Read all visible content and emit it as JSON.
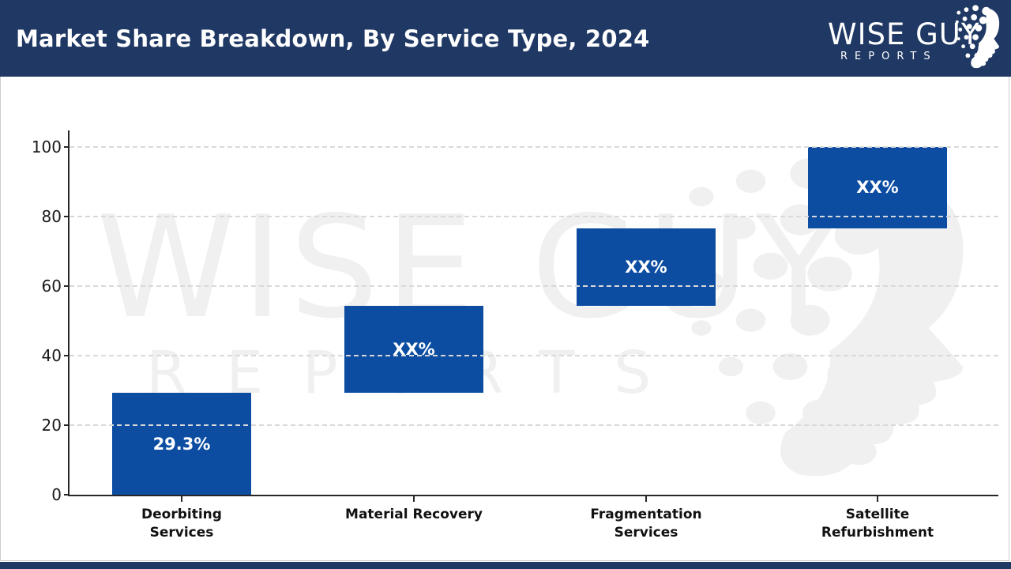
{
  "header": {
    "title": "Market Share Breakdown, By Service Type, 2024"
  },
  "logo": {
    "line1": "WISE GUY",
    "line2": "REPORTS"
  },
  "watermark": {
    "line1": "WISE GUY",
    "line2": "REPORTS"
  },
  "colors": {
    "header_bg": "#1f3864",
    "footer_bg": "#1f3864",
    "bar": "#0c4da2",
    "bar_label": "#ffffff",
    "grid": "#d9d9d9",
    "axis": "#262626",
    "tick_text": "#1a1a1a",
    "watermark": "#f0f0f0"
  },
  "chart_data": {
    "type": "bar",
    "subtype": "waterfall-floating-segments",
    "title": "Market Share Breakdown, By Service Type, 2024",
    "xlabel": "",
    "ylabel": "",
    "ylim": [
      0,
      100
    ],
    "yticks": [
      0,
      20,
      40,
      60,
      80,
      100
    ],
    "grid": "horizontal-dashed",
    "legend": "none",
    "categories": [
      [
        "Deorbiting",
        "Services"
      ],
      [
        "Material Recovery"
      ],
      [
        "Fragmentation",
        "Services"
      ],
      [
        "Satellite",
        "Refurbishment"
      ]
    ],
    "segments": [
      {
        "category": "Deorbiting Services",
        "label": "29.3%",
        "start": 0,
        "end": 29.3
      },
      {
        "category": "Material Recovery",
        "label": "XX%",
        "start": 29.3,
        "end": 54.3
      },
      {
        "category": "Fragmentation Services",
        "label": "XX%",
        "start": 54.3,
        "end": 76.6
      },
      {
        "category": "Satellite Refurbishment",
        "label": "XX%",
        "start": 76.6,
        "end": 100
      }
    ]
  }
}
